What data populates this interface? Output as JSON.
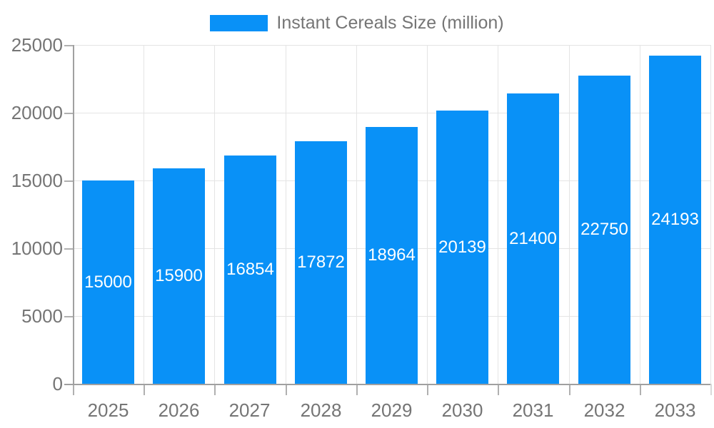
{
  "legend": {
    "label": "Instant Cereals Size (million)"
  },
  "chart_data": {
    "type": "bar",
    "title": "",
    "series_name": "Instant Cereals Size (million)",
    "categories": [
      "2025",
      "2026",
      "2027",
      "2028",
      "2029",
      "2030",
      "2031",
      "2032",
      "2033"
    ],
    "values": [
      15000,
      15900,
      16854,
      17872,
      18964,
      20139,
      21400,
      22750,
      24193
    ],
    "xlabel": "",
    "ylabel": "",
    "ylim": [
      0,
      25000
    ],
    "yticks": [
      0,
      5000,
      10000,
      15000,
      20000,
      25000
    ],
    "grid": true,
    "legend_position": "top-center",
    "value_label_position": "inside-center",
    "colors": {
      "bar": "#0991f7",
      "value_label": "#ffffff",
      "axis_text": "#757575",
      "legend_text": "#757575",
      "gridline": "#e4e4e4",
      "axis_line": "#a0a0a0",
      "tick": "#b0b0b0",
      "edge_tick": "#d9d9d9",
      "background": "#ffffff"
    }
  }
}
